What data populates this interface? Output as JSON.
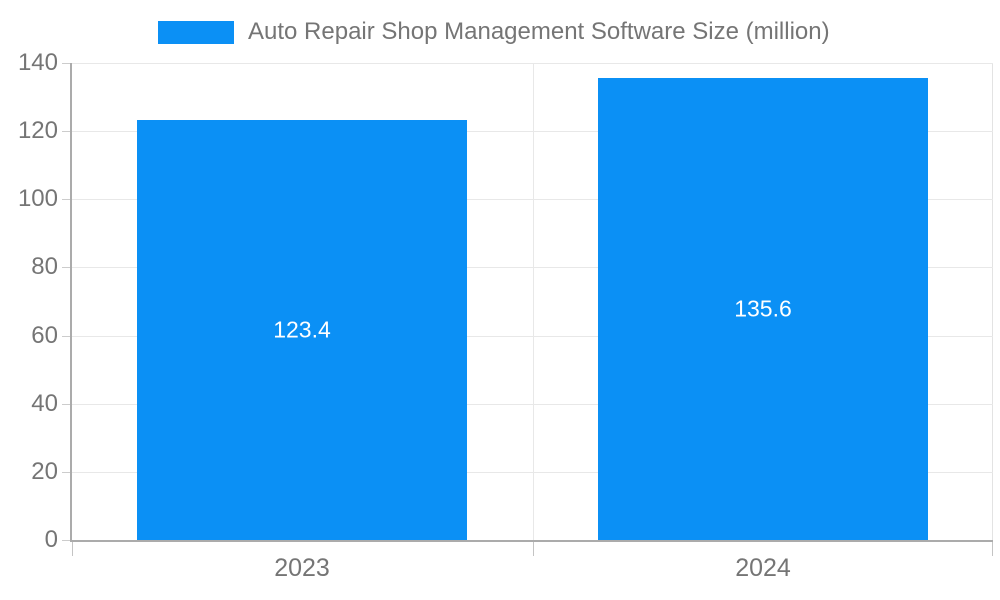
{
  "legend": {
    "label": "Auto Repair Shop Management Software Size (million)"
  },
  "colors": {
    "bar": "#0b90f5",
    "axis_text": "#757575",
    "data_label_text": "#ffffff",
    "gridline": "#e8e8e8",
    "axis_line": "#ababab",
    "background": "#ffffff"
  },
  "chart_data": {
    "type": "bar",
    "title": "Auto Repair Shop Management Software Size (million)",
    "categories": [
      "2023",
      "2024"
    ],
    "values": [
      123.4,
      135.6
    ],
    "bar_labels": [
      "123.4",
      "135.6"
    ],
    "xlabel": "",
    "ylabel": "",
    "ylim": [
      0,
      140
    ],
    "yticks": [
      0,
      20,
      40,
      60,
      80,
      100,
      120,
      140
    ],
    "ytick_labels": [
      "0",
      "20",
      "40",
      "60",
      "80",
      "100",
      "120",
      "140"
    ],
    "grid": true,
    "legend_position": "top-left",
    "bar_color": "#0b90f5",
    "data_label_position": "inside-center"
  }
}
